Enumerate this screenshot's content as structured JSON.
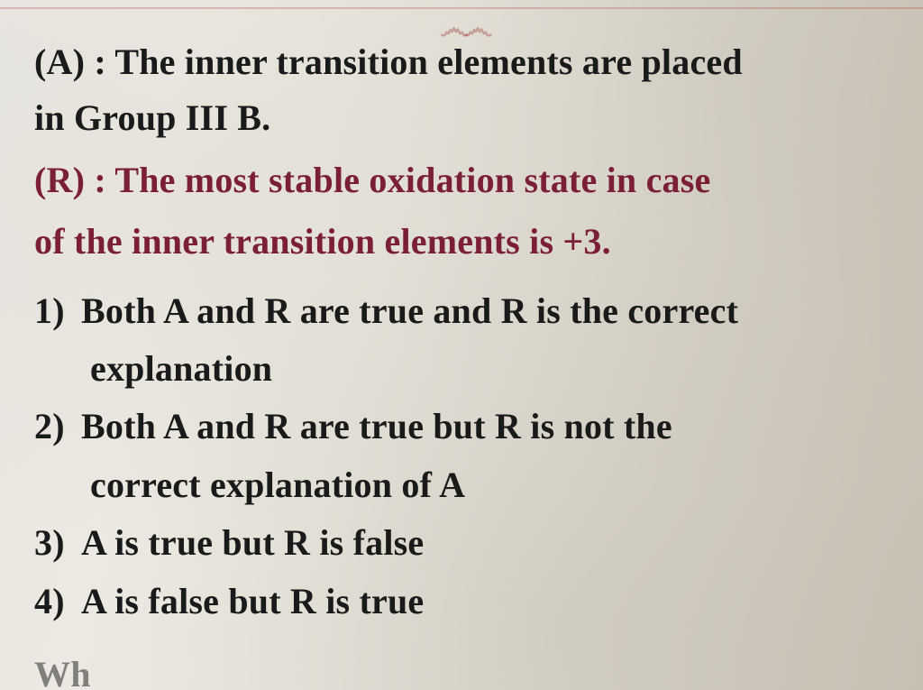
{
  "colors": {
    "text_black": "#1a1a1a",
    "text_maroon": "#7a1f34",
    "paper_light": "#ece9e2",
    "paper_dark": "#c7c0b3",
    "rule_red": "rgba(173,44,44,0.25)"
  },
  "typography": {
    "family": "Times New Roman / serif",
    "size_pt_est": 30,
    "weight": 600,
    "line_height": 1.56
  },
  "assertion": {
    "label": "(A) :",
    "line1": "(A) : The inner transition elements are placed",
    "line2": "in Group III B."
  },
  "reason": {
    "label": "(R) :",
    "line1": "(R) : The most stable oxidation state in case",
    "line2": "of the inner transition elements is +3."
  },
  "options": [
    {
      "num": "1)",
      "line1": "Both A and R are true and R is the correct",
      "line2": "explanation"
    },
    {
      "num": "2)",
      "line1": "Both A and R are true  but R is not the",
      "line2": "correct explanation of A"
    },
    {
      "num": "3)",
      "line1": "A is true but R  is false",
      "line2": ""
    },
    {
      "num": "4)",
      "line1": "A is false but R is true",
      "line2": ""
    }
  ],
  "bottom_peek": "Wh"
}
